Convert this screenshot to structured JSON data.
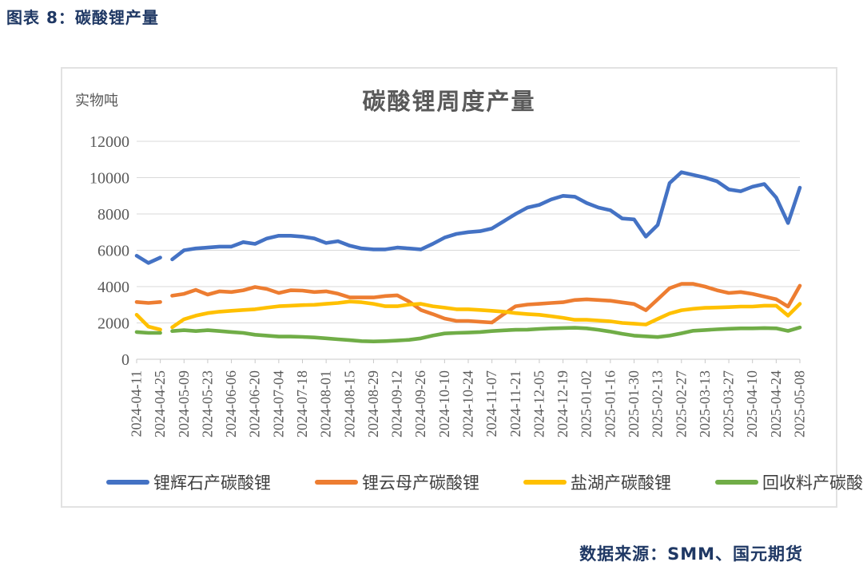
{
  "header": {
    "caption": "图表 8：碳酸锂产量"
  },
  "footer": {
    "source": "数据来源：SMM、国元期货"
  },
  "chart_data": {
    "type": "line",
    "title": "碳酸锂周度产量",
    "unit_label": "实物吨",
    "ylim": [
      0,
      12000
    ],
    "y_ticks": [
      0,
      2000,
      4000,
      6000,
      8000,
      10000,
      12000
    ],
    "grid": "horizontal",
    "legend_position": "bottom",
    "x_label_every": 2,
    "gap_between_categories": [
      "2024-04-25",
      "2024-05-02"
    ],
    "categories": [
      "2024-04-11",
      "2024-04-18",
      "2024-04-25",
      "2024-05-02",
      "2024-05-09",
      "2024-05-16",
      "2024-05-23",
      "2024-05-30",
      "2024-06-06",
      "2024-06-13",
      "2024-06-20",
      "2024-06-27",
      "2024-07-04",
      "2024-07-11",
      "2024-07-18",
      "2024-07-25",
      "2024-08-01",
      "2024-08-08",
      "2024-08-15",
      "2024-08-22",
      "2024-08-29",
      "2024-09-05",
      "2024-09-12",
      "2024-09-19",
      "2024-09-26",
      "2024-10-03",
      "2024-10-10",
      "2024-10-17",
      "2024-10-24",
      "2024-10-31",
      "2024-11-07",
      "2024-11-14",
      "2024-11-21",
      "2024-11-28",
      "2024-12-05",
      "2024-12-12",
      "2024-12-19",
      "2024-12-26",
      "2025-01-02",
      "2025-01-09",
      "2025-01-16",
      "2025-01-23",
      "2025-01-30",
      "2025-02-06",
      "2025-02-13",
      "2025-02-20",
      "2025-02-27",
      "2025-03-06",
      "2025-03-13",
      "2025-03-20",
      "2025-03-27",
      "2025-04-03",
      "2025-04-10",
      "2025-04-17",
      "2025-04-24",
      "2025-05-01",
      "2025-05-08"
    ],
    "series": [
      {
        "name": "锂辉石产碳酸锂",
        "color": "#4472C4",
        "values": [
          5700,
          5300,
          5600,
          5500,
          6000,
          6100,
          6150,
          6200,
          6200,
          6450,
          6350,
          6650,
          6800,
          6800,
          6750,
          6650,
          6400,
          6500,
          6250,
          6100,
          6050,
          6050,
          6150,
          6100,
          6050,
          6350,
          6700,
          6900,
          7000,
          7050,
          7200,
          7600,
          8000,
          8350,
          8500,
          8800,
          9000,
          8950,
          8600,
          8350,
          8200,
          7750,
          7700,
          6750,
          7400,
          9700,
          10300,
          10150,
          10000,
          9800,
          9350,
          9250,
          9500,
          9650,
          8900,
          7500,
          9450
        ]
      },
      {
        "name": "锂云母产碳酸锂",
        "color": "#ED7D31",
        "values": [
          3150,
          3100,
          3150,
          3500,
          3600,
          3820,
          3560,
          3740,
          3700,
          3800,
          3980,
          3870,
          3650,
          3800,
          3780,
          3700,
          3740,
          3610,
          3400,
          3400,
          3400,
          3480,
          3520,
          3180,
          2710,
          2490,
          2240,
          2110,
          2110,
          2060,
          2020,
          2490,
          2920,
          3010,
          3050,
          3100,
          3140,
          3260,
          3300,
          3260,
          3220,
          3130,
          3040,
          2700,
          3300,
          3910,
          4150,
          4150,
          4000,
          3800,
          3650,
          3700,
          3600,
          3450,
          3300,
          2900,
          4050
        ]
      },
      {
        "name": "盐湖产碳酸锂",
        "color": "#FFC000",
        "values": [
          2450,
          1800,
          1630,
          1760,
          2200,
          2400,
          2540,
          2620,
          2670,
          2710,
          2750,
          2840,
          2920,
          2950,
          2980,
          3000,
          3050,
          3100,
          3180,
          3140,
          3050,
          2920,
          2920,
          3010,
          3050,
          2920,
          2840,
          2750,
          2750,
          2710,
          2670,
          2620,
          2540,
          2490,
          2450,
          2370,
          2280,
          2170,
          2170,
          2130,
          2090,
          2000,
          1960,
          1910,
          2220,
          2520,
          2700,
          2780,
          2830,
          2850,
          2870,
          2900,
          2900,
          2950,
          2950,
          2400,
          3050
        ]
      },
      {
        "name": "回收料产碳酸锂",
        "color": "#70AD47",
        "values": [
          1500,
          1450,
          1450,
          1550,
          1600,
          1550,
          1600,
          1550,
          1500,
          1450,
          1350,
          1300,
          1250,
          1250,
          1230,
          1200,
          1150,
          1100,
          1050,
          1000,
          980,
          1000,
          1030,
          1070,
          1150,
          1300,
          1420,
          1450,
          1470,
          1500,
          1550,
          1590,
          1620,
          1630,
          1670,
          1700,
          1720,
          1730,
          1700,
          1620,
          1520,
          1400,
          1300,
          1260,
          1220,
          1300,
          1430,
          1570,
          1610,
          1650,
          1680,
          1700,
          1700,
          1720,
          1700,
          1560,
          1750
        ]
      }
    ]
  }
}
